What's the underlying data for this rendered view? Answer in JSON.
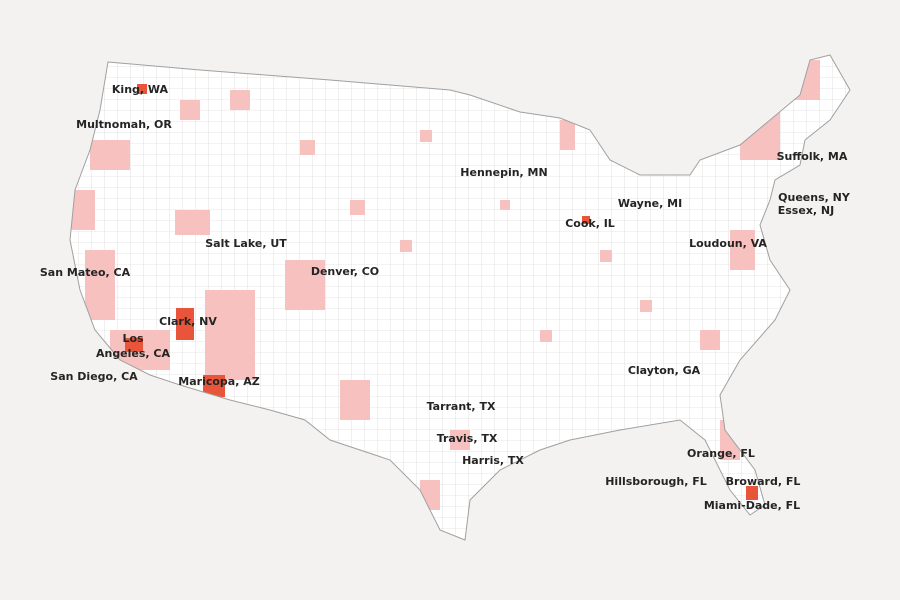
{
  "labels": [
    "King, WA",
    "Multnomah, OR",
    "San Mateo, CA",
    "Salt Lake, UT",
    "Denver, CO",
    "Clark, NV",
    "Los Angeles, CA",
    "San Diego, CA",
    "Maricopa, AZ",
    "Hennepin, MN",
    "Cook, IL",
    "Wayne, MI",
    "Suffolk, MA",
    "Queens, NY",
    "Essex, NJ",
    "Loudoun, VA",
    "Clayton, GA",
    "Tarrant, TX",
    "Travis, TX",
    "Harris, TX",
    "Orange, FL",
    "Hillsborough, FL",
    "Broward, FL",
    "Miami-Dade, FL"
  ]
}
